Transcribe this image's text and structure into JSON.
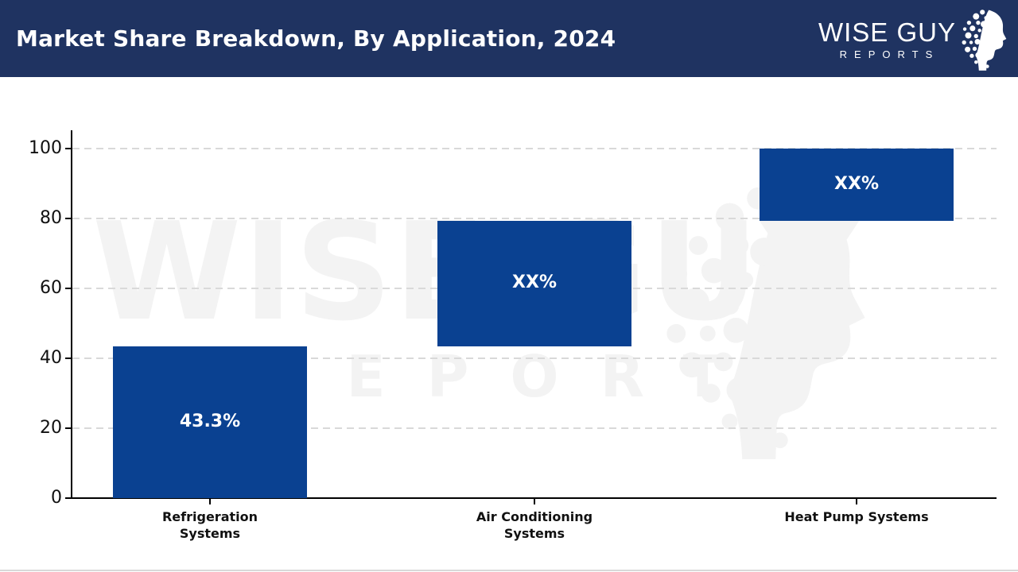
{
  "header": {
    "title": "Market Share Breakdown, By Application, 2024",
    "bg_color": "#1f3361",
    "logo": {
      "wordmark": "WISE GUY",
      "subtext": "REPORTS",
      "head_icon": "dotted-head-profile-icon"
    }
  },
  "watermark": {
    "wordmark": "WISE GUY",
    "subtext": "REPORTS",
    "color": "#f3f3f3"
  },
  "chart_data": {
    "type": "bar",
    "subtype": "floating-waterfall",
    "title": "Market Share Breakdown, By Application, 2024",
    "categories": [
      "Refrigeration Systems",
      "Air Conditioning Systems",
      "Heat Pump Systems"
    ],
    "category_lines": [
      [
        "Refrigeration",
        "Systems"
      ],
      [
        "Air Conditioning",
        "Systems"
      ],
      [
        "Heat Pump Systems"
      ]
    ],
    "segments": [
      {
        "category": "Refrigeration Systems",
        "from": 0,
        "to": 43.3,
        "label": "43.3%"
      },
      {
        "category": "Air Conditioning Systems",
        "from": 43.3,
        "to": 79.3,
        "label": "XX%"
      },
      {
        "category": "Heat Pump Systems",
        "from": 79.3,
        "to": 100,
        "label": "XX%"
      }
    ],
    "ylim": [
      0,
      100
    ],
    "yticks": [
      0,
      20,
      40,
      60,
      80,
      100
    ],
    "grid": "horizontal-dashed",
    "legend": "none",
    "xlabel": "",
    "ylabel": "",
    "bar_color": "#0a4191",
    "bar_label_color": "#ffffff",
    "axis_color": "#000000",
    "gridline_color": "#d9d9d9",
    "tick_label_color": "#111111"
  }
}
